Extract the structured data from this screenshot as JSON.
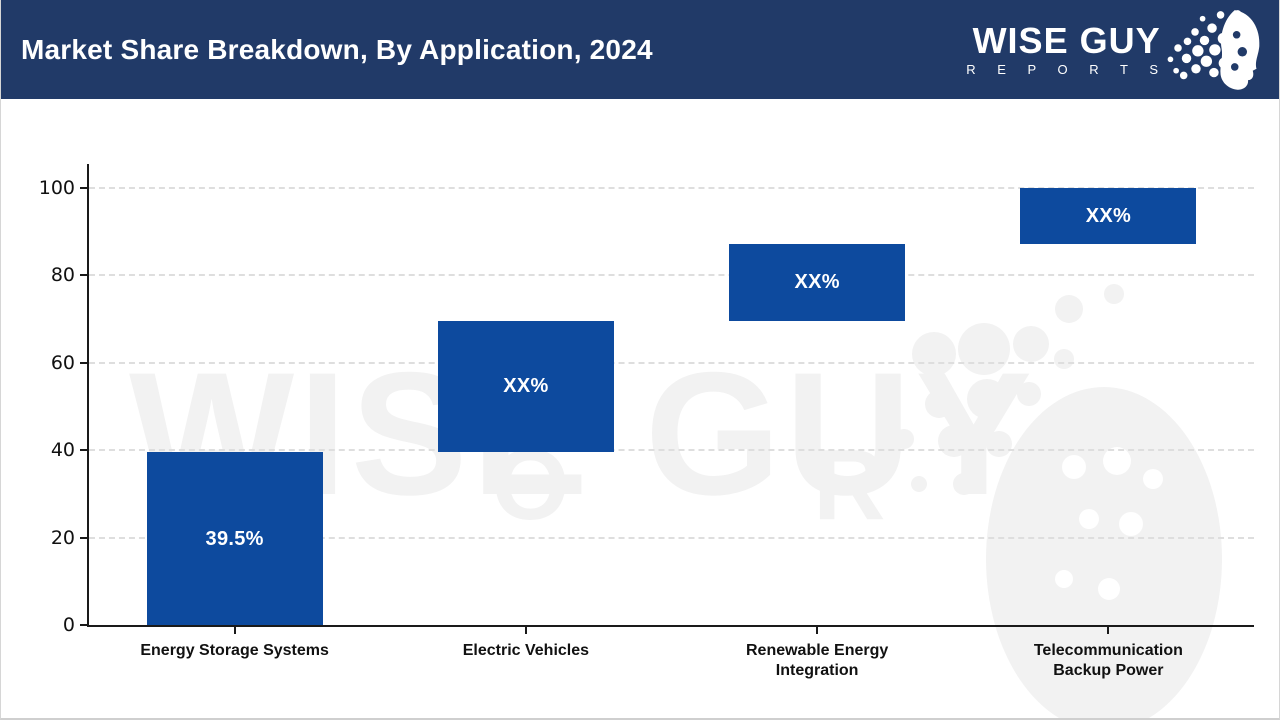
{
  "header": {
    "title": "Market Share Breakdown, By Application, 2024",
    "logo": {
      "name_top": "WISE GUY",
      "name_bottom": "R E P O R T S"
    }
  },
  "watermark": {
    "word_top": "WISE GUY",
    "word_bottom": "P O R T S"
  },
  "chart_data": {
    "type": "bar",
    "subtype": "floating-waterfall",
    "title": "Market Share Breakdown, By Application, 2024",
    "categories": [
      "Energy Storage Systems",
      "Electric Vehicles",
      "Renewable Energy Integration",
      "Telecommunication Backup Power"
    ],
    "segments": [
      {
        "category": "Energy Storage Systems",
        "start": 0,
        "end": 39.5,
        "label": "39.5%"
      },
      {
        "category": "Electric Vehicles",
        "start": 39.5,
        "end": 69.6,
        "label": "XX%"
      },
      {
        "category": "Renewable Energy Integration",
        "start": 69.6,
        "end": 87,
        "label": "XX%"
      },
      {
        "category": "Telecommunication Backup Power",
        "start": 87,
        "end": 100,
        "label": "XX%"
      }
    ],
    "yticks": [
      0,
      20,
      40,
      60,
      80,
      100
    ],
    "ylim": [
      0,
      100
    ],
    "xlabel": "",
    "ylabel": "",
    "grid": "horizontal-dashed",
    "legend": "none"
  },
  "colors": {
    "header_bg": "#213a68",
    "bar": "#0d4a9e",
    "bar_label": "#ffffff",
    "axis": "#1a1a1a",
    "grid": "#dedede",
    "watermark": "#f2f2f2"
  }
}
